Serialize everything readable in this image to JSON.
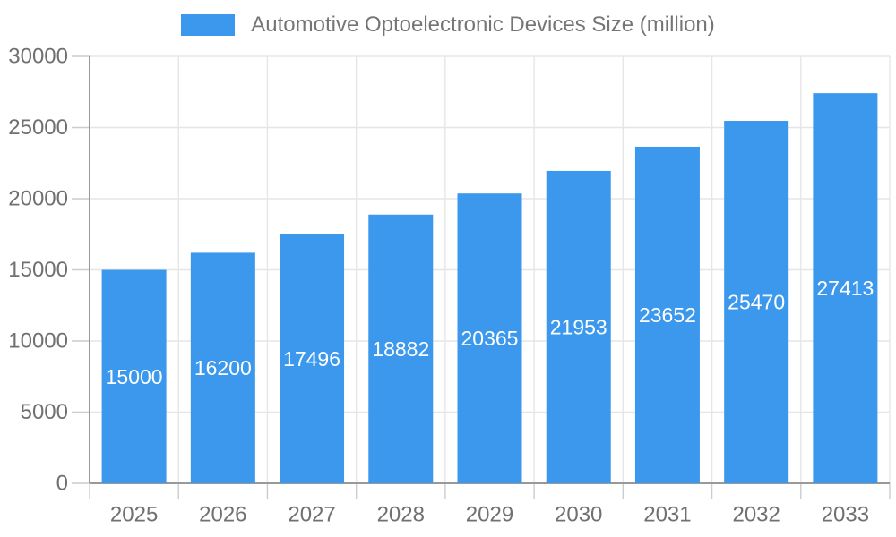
{
  "legend": {
    "label": "Automotive Optoelectronic Devices Size (million)"
  },
  "chart_data": {
    "type": "bar",
    "title": "Automotive Optoelectronic Devices Size (million)",
    "categories": [
      "2025",
      "2026",
      "2027",
      "2028",
      "2029",
      "2030",
      "2031",
      "2032",
      "2033"
    ],
    "values": [
      15000,
      16200,
      17496,
      18882,
      20365,
      21953,
      23652,
      25470,
      27413
    ],
    "xlabel": "",
    "ylabel": "",
    "ylim": [
      0,
      30000
    ],
    "yticks": [
      0,
      5000,
      10000,
      15000,
      20000,
      25000,
      30000
    ],
    "grid": true,
    "legend_position": "top-center",
    "value_labels": "inside-center-white",
    "colors": {
      "bar": "#3B98EC",
      "value_label": "#FFFFFF",
      "axis_line": "#999999",
      "gridline": "#E6E6E6",
      "tick": "#CCCCCC",
      "tick_label": "#707070",
      "legend_text": "#757575",
      "background": "#FFFFFF"
    }
  }
}
